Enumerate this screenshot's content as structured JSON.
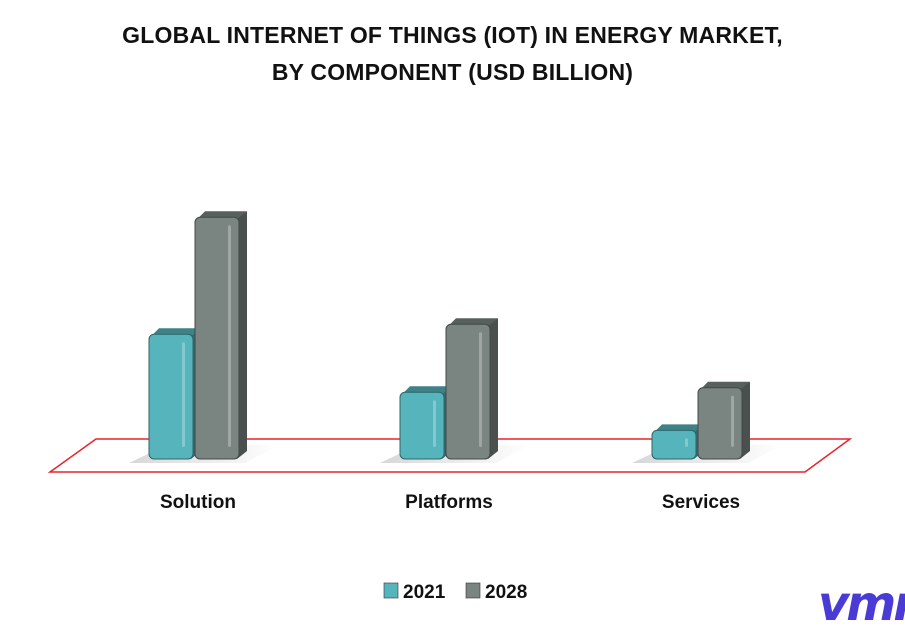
{
  "chart_data": {
    "type": "bar",
    "title": "GLOBAL INTERNET OF THINGS (IOT) IN ENERGY MARKET,",
    "subtitle": "BY COMPONENT (USD BILLION)",
    "categories": [
      "Solution",
      "Platforms",
      "Services"
    ],
    "series": [
      {
        "name": "2021",
        "values": [
          14.2,
          7.8,
          3.6
        ]
      },
      {
        "name": "2028",
        "values": [
          27.1,
          15.3,
          8.3
        ]
      }
    ],
    "xlabel": "",
    "ylabel": "",
    "ylim": [
      0,
      30
    ],
    "grid": false,
    "legend": "bottom-center"
  },
  "colors": {
    "series_2021": "#56b4bd",
    "series_2028": "#7a8582",
    "floor_outline": "#e8232a",
    "logo": "#4a3bd6"
  },
  "logo": {
    "text": "vmr"
  }
}
